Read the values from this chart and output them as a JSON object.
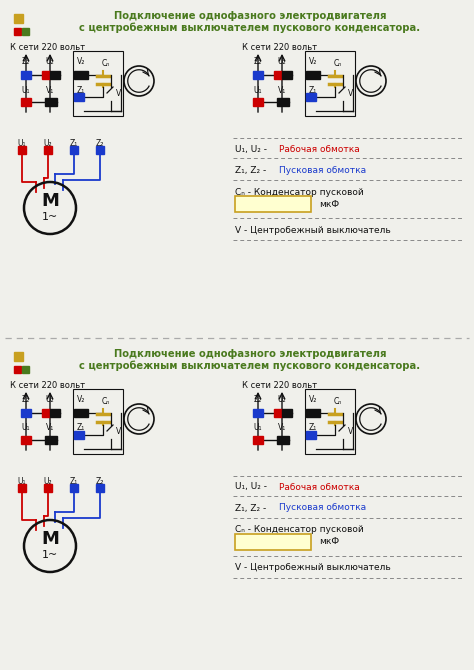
{
  "title_line1": "Подключение однофазного электродвигателя",
  "title_line2": "с центробежным выключателем пускового конденсатора.",
  "title_color": "#4a7a1e",
  "icon_color1": "#c8a020",
  "icon_color2": "#cc0000",
  "icon_color3": "#4a7a1e",
  "bg_color": "#f0f0eb",
  "red_color": "#cc0000",
  "blue_color": "#1a3acc",
  "black_color": "#111111",
  "yellow_color": "#c8a020",
  "yellow_fill": "#ffffd0",
  "gray_color": "#888888",
  "grid_220": "К сети 220 вольт",
  "motor_label": "M",
  "motor_label2": "1~",
  "sep_color": "#aaaaaa"
}
